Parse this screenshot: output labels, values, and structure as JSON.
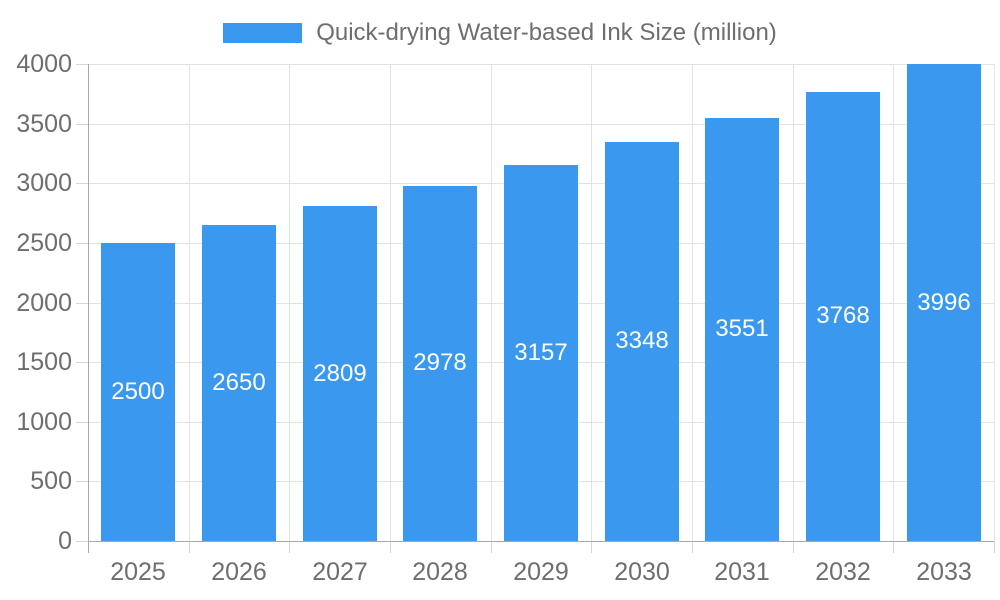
{
  "chart_data": {
    "type": "bar",
    "legend": "Quick-drying Water-based Ink Size (million)",
    "legend_position": "top",
    "categories": [
      "2025",
      "2026",
      "2027",
      "2028",
      "2029",
      "2030",
      "2031",
      "2032",
      "2033"
    ],
    "values": [
      2500,
      2650,
      2809,
      2978,
      3157,
      3348,
      3551,
      3768,
      3996
    ],
    "y_ticks": [
      0,
      500,
      1000,
      1500,
      2000,
      2500,
      3000,
      3500,
      4000
    ],
    "ylim": [
      0,
      4000
    ],
    "xlabel": "",
    "ylabel": "",
    "grid": true,
    "bar_color": "#3A99EE",
    "bar_label_color": "#FFFFFF",
    "axis_text_color": "#6E6E6E",
    "gridline_color": "#E3E3E3",
    "tick_color": "#D6D6D6",
    "axis_line_color": "#A8A8A8",
    "background_color": "#FFFFFF"
  }
}
